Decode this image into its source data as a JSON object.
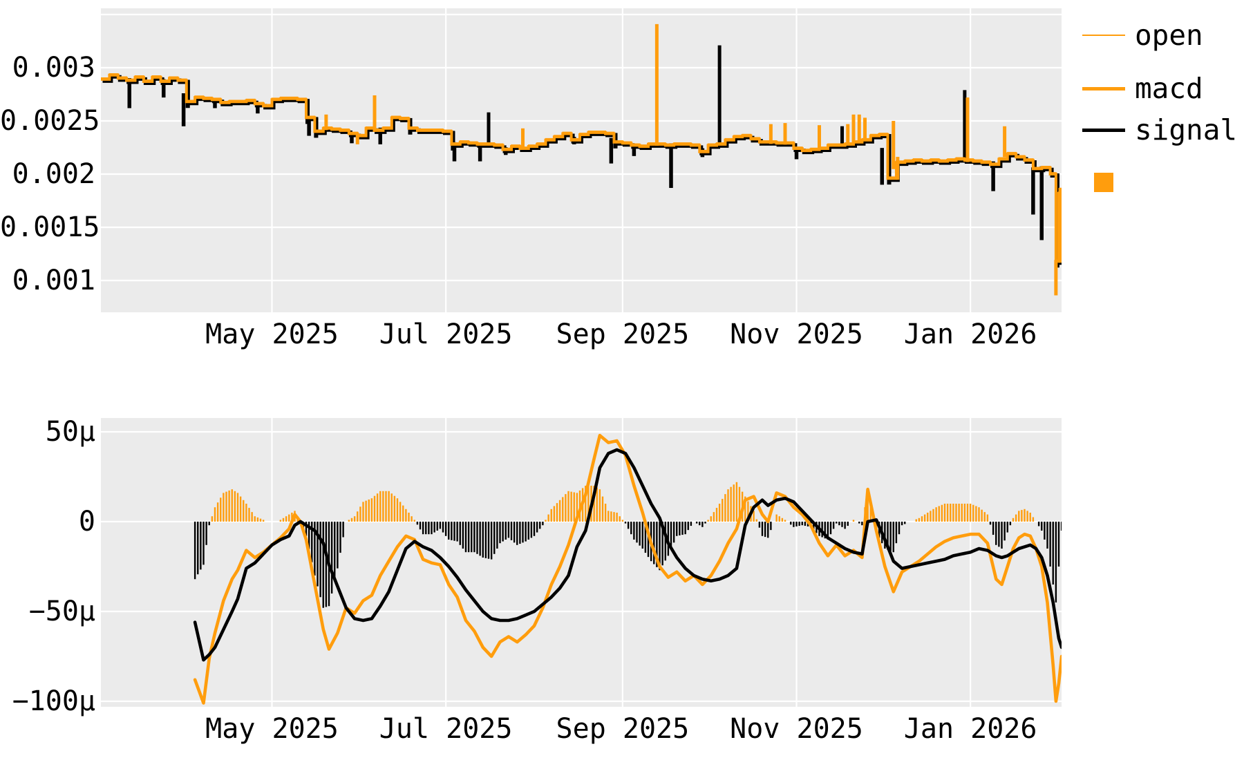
{
  "figure": {
    "orange": "#ff9d0d",
    "black": "#000000",
    "panel_bg": "#ebebeb",
    "grid_color": "#ffffff",
    "text_color": "#000000",
    "start_date_day0": "2025-03-02"
  },
  "legend": {
    "items": [
      {
        "label": "open",
        "swatch": "line-thin",
        "color": "#ff9d0d"
      },
      {
        "label": "macd",
        "swatch": "line-thick",
        "color": "#ff9d0d"
      },
      {
        "label": "signal",
        "swatch": "line-thick",
        "color": "#000000"
      },
      {
        "label": "",
        "swatch": "square",
        "color": "#ff9d0d"
      }
    ]
  },
  "chart_data": [
    {
      "type": "line",
      "panel": "price",
      "ylim": [
        0.00068,
        0.00356
      ],
      "grid": true,
      "yticks": [
        {
          "label": "0.003",
          "value": 0.003
        },
        {
          "label": "0.0025",
          "value": 0.0025
        },
        {
          "label": "0.002",
          "value": 0.002
        },
        {
          "label": "0.0015",
          "value": 0.0015
        },
        {
          "label": "0.001",
          "value": 0.001
        }
      ],
      "extra_gridlines": [
        0.0035
      ],
      "xticks": [
        {
          "label": "May 2025",
          "day": 60
        },
        {
          "label": "Jul 2025",
          "day": 121
        },
        {
          "label": "Sep 2025",
          "day": 183
        },
        {
          "label": "Nov 2025",
          "day": 244
        },
        {
          "label": "Jan 2026",
          "day": 305
        }
      ],
      "series_names": [
        "open",
        "macd",
        "signal"
      ],
      "note": "open (thin orange), macd (thick orange) and signal (black) overlap along price_path; spikes/dips are single-bar excursions",
      "price_path": {
        "days": [
          0,
          3,
          6,
          9,
          12,
          15,
          18,
          21,
          24,
          27,
          30,
          33,
          36,
          39,
          42,
          45,
          48,
          51,
          54,
          57,
          60,
          63,
          66,
          69,
          72,
          75,
          78,
          81,
          84,
          87,
          90,
          93,
          96,
          99,
          102,
          105,
          108,
          111,
          114,
          117,
          120,
          123,
          126,
          129,
          132,
          135,
          138,
          141,
          144,
          147,
          150,
          153,
          156,
          159,
          162,
          165,
          168,
          171,
          174,
          177,
          180,
          183,
          186,
          189,
          192,
          195,
          198,
          201,
          204,
          207,
          210,
          213,
          216,
          219,
          222,
          225,
          228,
          231,
          234,
          237,
          240,
          243,
          246,
          249,
          252,
          255,
          258,
          261,
          264,
          267,
          270,
          273,
          276,
          279,
          282,
          285,
          288,
          291,
          294,
          297,
          300,
          303,
          306,
          309,
          312,
          315,
          318,
          321,
          324,
          327,
          330,
          333,
          335,
          336,
          337
        ],
        "values": [
          0.00289,
          0.00293,
          0.0029,
          0.00288,
          0.00291,
          0.00287,
          0.00291,
          0.00287,
          0.0029,
          0.00288,
          0.00268,
          0.00272,
          0.00271,
          0.0027,
          0.00267,
          0.00268,
          0.00268,
          0.00269,
          0.00266,
          0.00264,
          0.0027,
          0.00271,
          0.00271,
          0.0027,
          0.00253,
          0.0024,
          0.00243,
          0.00242,
          0.00241,
          0.00238,
          0.00236,
          0.00243,
          0.00241,
          0.00243,
          0.00253,
          0.00252,
          0.00243,
          0.00241,
          0.00241,
          0.00241,
          0.0024,
          0.00228,
          0.0023,
          0.00229,
          0.00228,
          0.00228,
          0.00227,
          0.00223,
          0.00226,
          0.00224,
          0.00226,
          0.00228,
          0.00232,
          0.00235,
          0.00238,
          0.00232,
          0.00237,
          0.00239,
          0.00239,
          0.00238,
          0.0023,
          0.00229,
          0.00227,
          0.00226,
          0.00228,
          0.00228,
          0.00227,
          0.00228,
          0.00228,
          0.00227,
          0.00221,
          0.00227,
          0.00228,
          0.00232,
          0.00235,
          0.00236,
          0.00233,
          0.0023,
          0.0023,
          0.00229,
          0.00229,
          0.00224,
          0.00222,
          0.00223,
          0.00224,
          0.00227,
          0.00227,
          0.00228,
          0.0023,
          0.00232,
          0.00236,
          0.00237,
          0.00196,
          0.00211,
          0.00212,
          0.00213,
          0.00212,
          0.00213,
          0.00212,
          0.00213,
          0.00214,
          0.00213,
          0.00212,
          0.00211,
          0.00209,
          0.00214,
          0.00219,
          0.00216,
          0.00213,
          0.00205,
          0.00206,
          0.002,
          0.00118,
          0.00182,
          0.00183
        ]
      },
      "orange_spikes": [
        {
          "day": 79,
          "to": 0.00256
        },
        {
          "day": 96,
          "to": 0.00274
        },
        {
          "day": 148,
          "to": 0.00243
        },
        {
          "day": 195,
          "to": 0.00341
        },
        {
          "day": 235,
          "to": 0.00247
        },
        {
          "day": 240,
          "to": 0.00248
        },
        {
          "day": 252,
          "to": 0.00246
        },
        {
          "day": 262,
          "to": 0.00247
        },
        {
          "day": 264,
          "to": 0.00256
        },
        {
          "day": 266,
          "to": 0.00256
        },
        {
          "day": 268,
          "to": 0.00253
        },
        {
          "day": 278,
          "to": 0.0025
        },
        {
          "day": 304,
          "to": 0.00272
        },
        {
          "day": 317,
          "to": 0.00245
        }
      ],
      "black_spikes": [
        {
          "day": 136,
          "to": 0.00258
        },
        {
          "day": 217,
          "to": 0.00321
        },
        {
          "day": 260,
          "to": 0.00245
        },
        {
          "day": 303,
          "to": 0.00279
        }
      ],
      "black_dips": [
        {
          "day": 10,
          "to": 0.00262
        },
        {
          "day": 22,
          "to": 0.00272
        },
        {
          "day": 29,
          "to": 0.00245
        },
        {
          "day": 40,
          "to": 0.00262
        },
        {
          "day": 55,
          "to": 0.00257
        },
        {
          "day": 73,
          "to": 0.00236
        },
        {
          "day": 88,
          "to": 0.00229
        },
        {
          "day": 98,
          "to": 0.00228
        },
        {
          "day": 124,
          "to": 0.00212
        },
        {
          "day": 133,
          "to": 0.00212
        },
        {
          "day": 142,
          "to": 0.00218
        },
        {
          "day": 166,
          "to": 0.00228
        },
        {
          "day": 179,
          "to": 0.0021
        },
        {
          "day": 187,
          "to": 0.00217
        },
        {
          "day": 200,
          "to": 0.00187
        },
        {
          "day": 211,
          "to": 0.00216
        },
        {
          "day": 244,
          "to": 0.00214
        },
        {
          "day": 274,
          "to": 0.0019
        },
        {
          "day": 313,
          "to": 0.00184
        },
        {
          "day": 327,
          "to": 0.00162
        },
        {
          "day": 330,
          "to": 0.00138
        }
      ],
      "orange_dips": [
        {
          "day": 90,
          "to": 0.00228
        },
        {
          "day": 335,
          "to": 0.00086
        }
      ]
    },
    {
      "type": "macd_histogram",
      "panel": "macd",
      "unit": "micro (1e-6)",
      "ylim_micro": [
        -104,
        57
      ],
      "grid": true,
      "yticks": [
        {
          "label": "50µ",
          "value": 50
        },
        {
          "label": "0",
          "value": 0
        },
        {
          "label": "−50µ",
          "value": -50
        },
        {
          "label": "−100µ",
          "value": -100
        }
      ],
      "xticks": [
        {
          "label": "May 2025",
          "day": 60
        },
        {
          "label": "Jul 2025",
          "day": 121
        },
        {
          "label": "Sep 2025",
          "day": 183
        },
        {
          "label": "Nov 2025",
          "day": 244
        },
        {
          "label": "Jan 2026",
          "day": 305
        }
      ],
      "histogram_note": "bars = macd - signal, orange when >= 0, black when < 0",
      "days": [
        33,
        36,
        38,
        40,
        43,
        46,
        48,
        51,
        54,
        57,
        60,
        63,
        66,
        68,
        70,
        72,
        75,
        78,
        80,
        83,
        86,
        89,
        92,
        95,
        98,
        101,
        104,
        107,
        110,
        113,
        116,
        119,
        122,
        125,
        128,
        131,
        134,
        137,
        140,
        143,
        146,
        149,
        152,
        155,
        158,
        161,
        164,
        167,
        170,
        173,
        175,
        178,
        181,
        184,
        187,
        190,
        193,
        196,
        199,
        202,
        205,
        208,
        211,
        214,
        217,
        220,
        223,
        226,
        229,
        232,
        234,
        237,
        240,
        243,
        246,
        249,
        252,
        255,
        258,
        261,
        264,
        267,
        269,
        272,
        275,
        278,
        281,
        284,
        287,
        290,
        293,
        296,
        299,
        302,
        305,
        308,
        311,
        314,
        316,
        318,
        320,
        322,
        324,
        326,
        328,
        330,
        332,
        334,
        335,
        336,
        337
      ],
      "macd_micro": [
        -88,
        -101,
        -76,
        -62,
        -44,
        -32,
        -27,
        -16,
        -20,
        -17,
        -13,
        -9,
        -4,
        4,
        0,
        -10,
        -35,
        -60,
        -71,
        -62,
        -48,
        -51,
        -44,
        -41,
        -30,
        -22,
        -14,
        -8,
        -10,
        -21,
        -23,
        -24,
        -35,
        -42,
        -55,
        -61,
        -70,
        -75,
        -67,
        -64,
        -67,
        -63,
        -58,
        -48,
        -35,
        -25,
        -13,
        2,
        15,
        35,
        48,
        44,
        45,
        37,
        20,
        5,
        -12,
        -25,
        -31,
        -28,
        -33,
        -30,
        -35,
        -30,
        -22,
        -12,
        -4,
        12,
        14,
        4,
        0,
        16,
        14,
        8,
        4,
        -2,
        -12,
        -19,
        -13,
        -19,
        -16,
        -20,
        18,
        -5,
        -25,
        -39,
        -28,
        -25,
        -22,
        -18,
        -14,
        -11,
        -9,
        -8,
        -7,
        -7,
        -12,
        -32,
        -35,
        -25,
        -15,
        -9,
        -7,
        -8,
        -15,
        -25,
        -45,
        -80,
        -100,
        -90,
        -75
      ],
      "signal_micro": [
        -56,
        -77,
        -74,
        -70,
        -60,
        -50,
        -43,
        -26,
        -23,
        -18,
        -13,
        -10,
        -8,
        -2,
        0,
        -2,
        -5,
        -12,
        -24,
        -36,
        -48,
        -54,
        -55,
        -54,
        -47,
        -39,
        -27,
        -15,
        -11,
        -14,
        -16,
        -20,
        -25,
        -31,
        -38,
        -44,
        -50,
        -54,
        -55,
        -55,
        -54,
        -52,
        -50,
        -46,
        -42,
        -37,
        -30,
        -14,
        -5,
        15,
        30,
        38,
        40,
        38,
        30,
        20,
        10,
        2,
        -12,
        -20,
        -26,
        -30,
        -32,
        -33,
        -32,
        -30,
        -26,
        -2,
        8,
        12,
        9,
        12,
        13,
        11,
        6,
        1,
        -4,
        -9,
        -12,
        -15,
        -17,
        -18,
        0,
        1,
        -10,
        -22,
        -26,
        -25,
        -24,
        -23,
        -22,
        -21,
        -19,
        -18,
        -17,
        -15,
        -16,
        -19,
        -20,
        -19,
        -17,
        -15,
        -14,
        -13,
        -15,
        -20,
        -30,
        -45,
        -55,
        -65,
        -70
      ]
    }
  ]
}
